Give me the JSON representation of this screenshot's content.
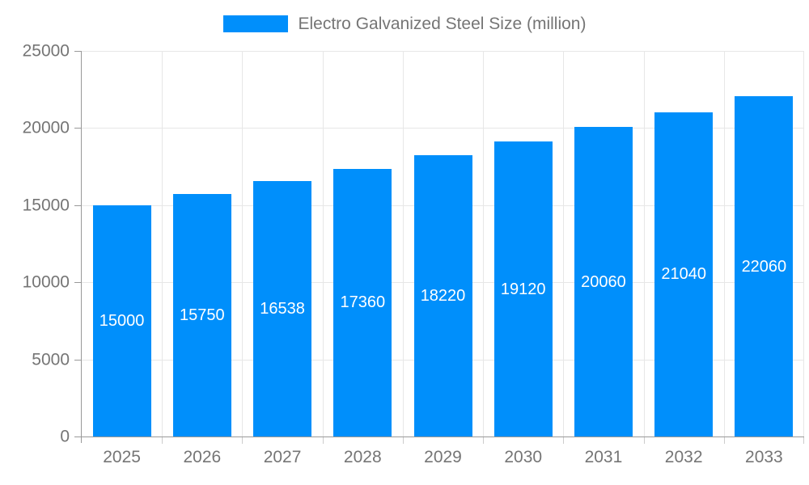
{
  "legend": {
    "label": "Electro Galvanized Steel Size (million)"
  },
  "chart_data": {
    "type": "bar",
    "title": "Electro Galvanized Steel Size (million)",
    "categories": [
      "2025",
      "2026",
      "2027",
      "2028",
      "2029",
      "2030",
      "2031",
      "2032",
      "2033"
    ],
    "series": [
      {
        "name": "Electro Galvanized Steel Size (million)",
        "values": [
          15000,
          15750,
          16538,
          17360,
          18220,
          19120,
          20060,
          21040,
          22060
        ]
      }
    ],
    "xlabel": "",
    "ylabel": "",
    "ylim": [
      0,
      25000
    ],
    "yticks": [
      0,
      5000,
      10000,
      15000,
      20000,
      25000
    ],
    "grid": true,
    "legend_position": "top-center",
    "value_label_position": "inside-center",
    "colors": {
      "bar": "#008FFB",
      "value_label": "#FFFFFF",
      "axis_line": "#999999",
      "grid_line": "#E7E7E7",
      "x_tick": "#CCCCCC",
      "y_tick": "#999999",
      "tick_label": "#757575",
      "legend_text": "#757575"
    }
  }
}
